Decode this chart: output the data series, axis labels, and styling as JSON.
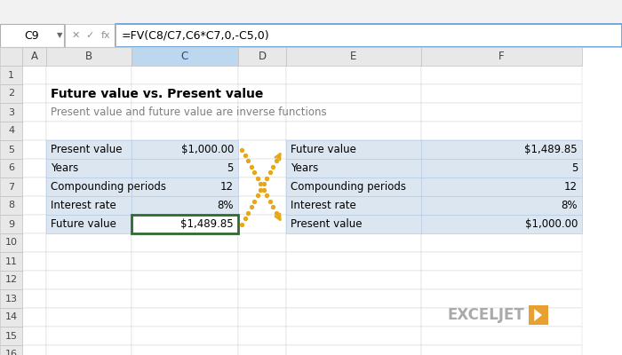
{
  "title": "Future value vs. Present value",
  "subtitle": "Present value and future value are inverse functions",
  "formula_bar_cell": "C9",
  "formula_bar_text": "=FV(C8/C7,C6*C7,0,-C5,0)",
  "left_table": {
    "rows": [
      [
        "Present value",
        "$1,000.00"
      ],
      [
        "Years",
        "5"
      ],
      [
        "Compounding periods",
        "12"
      ],
      [
        "Interest rate",
        "8%"
      ],
      [
        "Future value",
        "$1,489.85"
      ]
    ]
  },
  "right_table": {
    "rows": [
      [
        "Future value",
        "$1,489.85"
      ],
      [
        "Years",
        "5"
      ],
      [
        "Compounding periods",
        "12"
      ],
      [
        "Interest rate",
        "8%"
      ],
      [
        "Present value",
        "$1,000.00"
      ]
    ]
  },
  "cell_bg": "#dce6f1",
  "selected_col_bg": "#bdd7ee",
  "selected_cell_border": "#2e6b2e",
  "arrow_color": "#e6a817",
  "title_color": "#000000",
  "subtitle_color": "#7f7f7f",
  "spreadsheet_bg": "#ffffff",
  "toolbar_bg": "#f2f2f2",
  "col_header_bg": "#e8e8e8",
  "row_header_bg": "#e8e8e8",
  "grid_line_color": "#d0d0d0",
  "logo_text": "EXCELJET",
  "logo_text_color": "#aaaaaa",
  "logo_icon_bg": "#e8a030",
  "logo_icon_color": "#ffffff"
}
